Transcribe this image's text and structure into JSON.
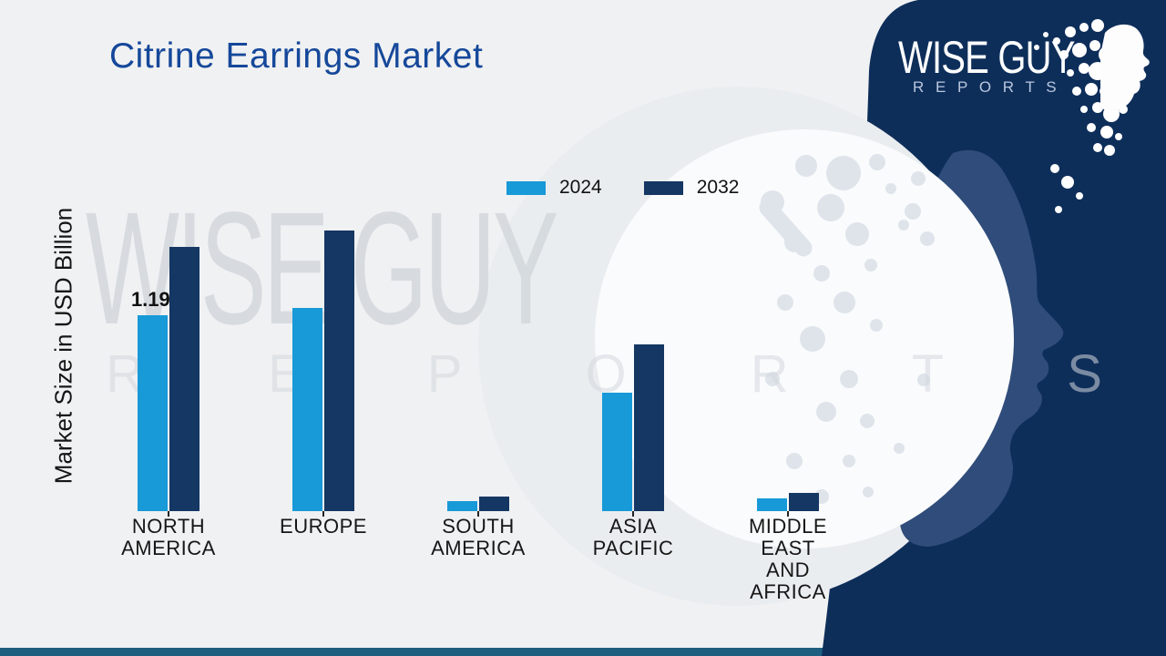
{
  "title": {
    "text": "Citrine Earrings Market",
    "color": "#15489a"
  },
  "y_axis_label": "Market Size in USD Billion",
  "watermark": {
    "line1": "WISE GUY",
    "line2": "R E P O R T S",
    "color": "#d3d8de"
  },
  "logo": {
    "line1": "WISE GUY",
    "line2": "R E P O R T S",
    "subtext_color": "#b9c7de"
  },
  "legend": {
    "items": [
      {
        "label": "2024",
        "color": "#1899d8"
      },
      {
        "label": "2032",
        "color": "#143763"
      }
    ]
  },
  "chart_data": {
    "type": "bar",
    "title": "Citrine Earrings Market",
    "ylabel": "Market Size in USD Billion",
    "xlabel": "",
    "categories": [
      "NORTH AMERICA",
      "EUROPE",
      "SOUTH AMERICA",
      "ASIA PACIFIC",
      "MIDDLE EAST AND AFRICA"
    ],
    "series": [
      {
        "name": "2024",
        "color": "#1899d8",
        "values": [
          1.19,
          1.23,
          0.06,
          0.72,
          0.08
        ]
      },
      {
        "name": "2032",
        "color": "#143763",
        "values": [
          1.6,
          1.7,
          0.09,
          1.01,
          0.11
        ]
      }
    ],
    "value_labels": [
      {
        "series": "2024",
        "category": "NORTH AMERICA",
        "text": "1.19"
      }
    ],
    "ylim": [
      0,
      1.8
    ],
    "grid": false,
    "axis_line": false,
    "legend_position": "top-right"
  },
  "colors": {
    "background": "#f0f1f2",
    "corner_navy": "#0e2e5a",
    "face_blue": "#2f4c7a",
    "circle_white": "#fafbfc",
    "circle_faint": "#eaedf0",
    "dot_gray": "#c9d2de",
    "bottom_bar": "#1e5f80"
  }
}
